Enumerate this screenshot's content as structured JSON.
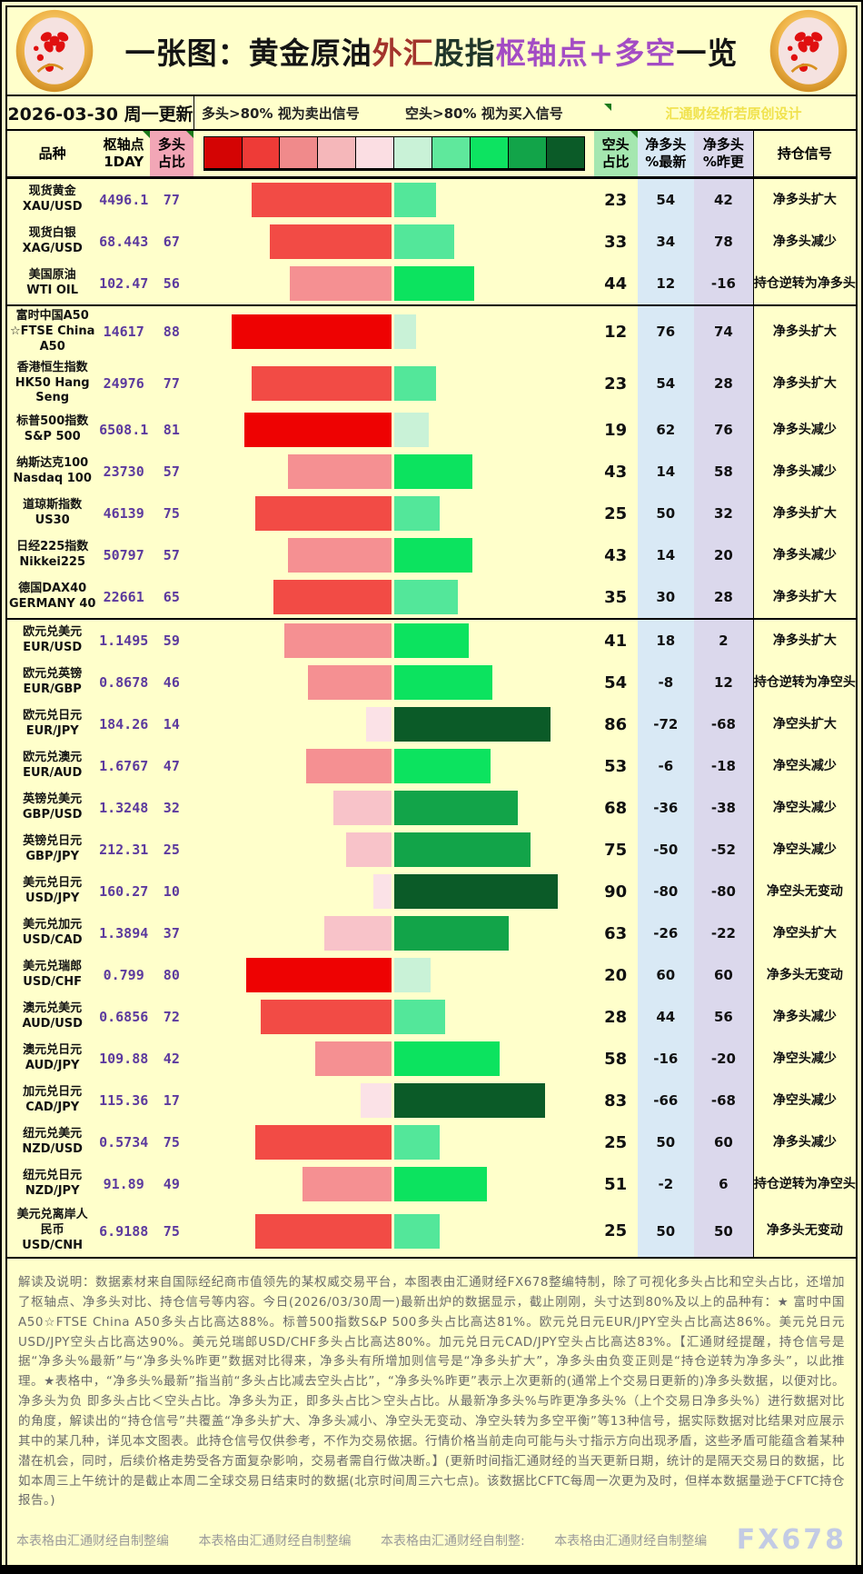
{
  "title": {
    "segments": [
      {
        "text": "一张图：黄金原油",
        "color": "#141414"
      },
      {
        "text": "外汇",
        "color": "#A3342C"
      },
      {
        "text": "股指",
        "color": "#20362A"
      },
      {
        "text": "枢轴点+多空",
        "color": "#A34CC4"
      },
      {
        "text": "一览",
        "color": "#141414"
      }
    ]
  },
  "subheader": {
    "date": "2026-03-30 周一更新",
    "hint_long": "多头>80% 视为卖出信号",
    "hint_short": "空头>80% 视为买入信号",
    "designer": "汇通财经析若原创设计"
  },
  "columns": {
    "name": "品种",
    "pivot": "枢轴点\n1DAY",
    "long": "多头\n占比",
    "short": "空头\n占比",
    "net_new": "净多头\n%最新",
    "net_old": "净多头\n%昨更",
    "signal": "持仓信号"
  },
  "legend": {
    "scale_colors": [
      "#D40404",
      "#EE3B37",
      "#F08A8B",
      "#F5B7BA",
      "#FBDEE3",
      "#C9F2D7",
      "#5FE89C",
      "#0DE361",
      "#12A449",
      "#0B5B28"
    ],
    "red_bucket_colors": [
      "#EE0202",
      "#F24B45",
      "#F59092",
      "#F8C3C9",
      "#FBE2E7"
    ],
    "green_bucket_colors": [
      "#0B5B28",
      "#12A449",
      "#0CE35F",
      "#53E79A",
      "#C9F2D7"
    ]
  },
  "table": {
    "rows": [
      {
        "group": "commodity",
        "name_lines": [
          "现货黄金",
          "XAU/USD"
        ],
        "pivot": "4496.1",
        "long": 77,
        "short": 23,
        "net_new": "54",
        "net_old": "42",
        "signal": "净多头扩大"
      },
      {
        "group": "commodity",
        "name_lines": [
          "现货白银",
          "XAG/USD"
        ],
        "pivot": "68.443",
        "long": 67,
        "short": 33,
        "net_new": "34",
        "net_old": "78",
        "signal": "净多头减少"
      },
      {
        "group": "commodity",
        "name_lines": [
          "美国原油",
          "WTI OIL"
        ],
        "pivot": "102.47",
        "long": 56,
        "short": 44,
        "net_new": "12",
        "net_old": "-16",
        "signal": "持仓逆转为净多头"
      },
      {
        "group": "index",
        "name_lines": [
          "富时中国A50",
          "☆FTSE China",
          "A50"
        ],
        "pivot": "14617",
        "long": 88,
        "short": 12,
        "net_new": "76",
        "net_old": "74",
        "signal": "净多头扩大"
      },
      {
        "group": "index",
        "name_lines": [
          "香港恒生指数",
          "HK50 Hang",
          "Seng"
        ],
        "pivot": "24976",
        "long": 77,
        "short": 23,
        "net_new": "54",
        "net_old": "28",
        "signal": "净多头扩大"
      },
      {
        "group": "index",
        "name_lines": [
          "标普500指数",
          "S&P 500"
        ],
        "pivot": "6508.1",
        "long": 81,
        "short": 19,
        "net_new": "62",
        "net_old": "76",
        "signal": "净多头减少"
      },
      {
        "group": "index",
        "name_lines": [
          "纳斯达克100",
          "Nasdaq 100"
        ],
        "pivot": "23730",
        "long": 57,
        "short": 43,
        "net_new": "14",
        "net_old": "58",
        "signal": "净多头减少"
      },
      {
        "group": "index",
        "name_lines": [
          "道琼斯指数",
          "US30"
        ],
        "pivot": "46139",
        "long": 75,
        "short": 25,
        "net_new": "50",
        "net_old": "32",
        "signal": "净多头扩大"
      },
      {
        "group": "index",
        "name_lines": [
          "日经225指数",
          "Nikkei225"
        ],
        "pivot": "50797",
        "long": 57,
        "short": 43,
        "net_new": "14",
        "net_old": "20",
        "signal": "净多头减少"
      },
      {
        "group": "index",
        "name_lines": [
          "德国DAX40",
          "GERMANY 40"
        ],
        "pivot": "22661",
        "long": 65,
        "short": 35,
        "net_new": "30",
        "net_old": "28",
        "signal": "净多头扩大"
      },
      {
        "group": "fx",
        "name_lines": [
          "欧元兑美元",
          "EUR/USD"
        ],
        "pivot": "1.1495",
        "long": 59,
        "short": 41,
        "net_new": "18",
        "net_old": "2",
        "signal": "净多头扩大"
      },
      {
        "group": "fx",
        "name_lines": [
          "欧元兑英镑",
          "EUR/GBP"
        ],
        "pivot": "0.8678",
        "long": 46,
        "short": 54,
        "net_new": "-8",
        "net_old": "12",
        "signal": "持仓逆转为净空头"
      },
      {
        "group": "fx",
        "name_lines": [
          "欧元兑日元",
          "EUR/JPY"
        ],
        "pivot": "184.26",
        "long": 14,
        "short": 86,
        "net_new": "-72",
        "net_old": "-68",
        "signal": "净空头扩大"
      },
      {
        "group": "fx",
        "name_lines": [
          "欧元兑澳元",
          "EUR/AUD"
        ],
        "pivot": "1.6767",
        "long": 47,
        "short": 53,
        "net_new": "-6",
        "net_old": "-18",
        "signal": "净空头减少"
      },
      {
        "group": "fx",
        "name_lines": [
          "英镑兑美元",
          "GBP/USD"
        ],
        "pivot": "1.3248",
        "long": 32,
        "short": 68,
        "net_new": "-36",
        "net_old": "-38",
        "signal": "净空头减少"
      },
      {
        "group": "fx",
        "name_lines": [
          "英镑兑日元",
          "GBP/JPY"
        ],
        "pivot": "212.31",
        "long": 25,
        "short": 75,
        "net_new": "-50",
        "net_old": "-52",
        "signal": "净空头减少"
      },
      {
        "group": "fx",
        "name_lines": [
          "美元兑日元",
          "USD/JPY"
        ],
        "pivot": "160.27",
        "long": 10,
        "short": 90,
        "net_new": "-80",
        "net_old": "-80",
        "signal": "净空头无变动"
      },
      {
        "group": "fx",
        "name_lines": [
          "美元兑加元",
          "USD/CAD"
        ],
        "pivot": "1.3894",
        "long": 37,
        "short": 63,
        "net_new": "-26",
        "net_old": "-22",
        "signal": "净空头扩大"
      },
      {
        "group": "fx",
        "name_lines": [
          "美元兑瑞郎",
          "USD/CHF"
        ],
        "pivot": "0.799",
        "long": 80,
        "short": 20,
        "net_new": "60",
        "net_old": "60",
        "signal": "净多头无变动"
      },
      {
        "group": "fx",
        "name_lines": [
          "澳元兑美元",
          "AUD/USD"
        ],
        "pivot": "0.6856",
        "long": 72,
        "short": 28,
        "net_new": "44",
        "net_old": "56",
        "signal": "净多头减少"
      },
      {
        "group": "fx",
        "name_lines": [
          "澳元兑日元",
          "AUD/JPY"
        ],
        "pivot": "109.88",
        "long": 42,
        "short": 58,
        "net_new": "-16",
        "net_old": "-20",
        "signal": "净空头减少"
      },
      {
        "group": "fx",
        "name_lines": [
          "加元兑日元",
          "CAD/JPY"
        ],
        "pivot": "115.36",
        "long": 17,
        "short": 83,
        "net_new": "-66",
        "net_old": "-68",
        "signal": "净空头减少"
      },
      {
        "group": "fx",
        "name_lines": [
          "纽元兑美元",
          "NZD/USD"
        ],
        "pivot": "0.5734",
        "long": 75,
        "short": 25,
        "net_new": "50",
        "net_old": "60",
        "signal": "净多头减少"
      },
      {
        "group": "fx",
        "name_lines": [
          "纽元兑日元",
          "NZD/JPY"
        ],
        "pivot": "91.89",
        "long": 49,
        "short": 51,
        "net_new": "-2",
        "net_old": "6",
        "signal": "持仓逆转为净空头"
      },
      {
        "group": "fx",
        "name_lines": [
          "美元兑离岸人",
          "民币",
          "USD/CNH"
        ],
        "pivot": "6.9188",
        "long": 75,
        "short": 25,
        "net_new": "50",
        "net_old": "50",
        "signal": "净多头无变动"
      }
    ]
  },
  "notes": {
    "text": "解读及说明：数据素材来自国际经纪商市值领先的某权威交易平台，本图表由汇通财经FX678整编特制，除了可视化多头占比和空头占比，还增加了枢轴点、净多头对比、持仓信号等内容。今日(2026/03/30周一)最新出炉的数据显示，截止刚刚，头寸达到80%及以上的品种有：★ 富时中国A50☆FTSE China A50多头占比高达88%。标普500指数S&P 500多头占比高达81%。欧元兑日元EUR/JPY空头占比高达86%。美元兑日元USD/JPY空头占比高达90%。美元兑瑞郎USD/CHF多头占比高达80%。加元兑日元CAD/JPY空头占比高达83%。【汇通财经提醒，持仓信号是据“净多头%最新”与“净多头%昨更”数据对比得来，净多头有所增加则信号是“净多头扩大”，净多头由负变正则是“持仓逆转为净多头”，以此推理。★表格中，“净多头%最新”指当前“多头占比减去空头占比”，“净多头%昨更”表示上次更新的(通常上个交易日更新的)净多头数据，以便对比。净多头为负 即多头占比＜空头占比。净多头为正，即多头占比＞空头占比。从最新净多头%与昨更净多头%（上个交易日净多头%）进行数据对比的角度，解读出的“持仓信号”共覆盖“净多头扩大、净多头减小、净空头无变动、净空头转为多空平衡”等13种信号，据实际数据对比结果对应展示其中的某几种，详见本文图表。此持仓信号仅供参考，不作为交易依据。行情价格当前走向可能与头寸指示方向出现矛盾，这些矛盾可能蕴含着某种潜在机会，同时，后续价格走势受各方面复杂影响，交易者需自行做决断。】(更新时间指汇通财经的当天更新日期，统计的是隔天交易日的数据，比如本周三上午统计的是截止本周二全球交易日结束时的数据(北京时间周三六七点)。该数据比CFTC每周一次更为及时，但样本数据量逊于CFTC持仓报告。)"
  },
  "footer": {
    "credits": [
      "本表格由汇通财经自制整编",
      "本表格由汇通财经自制整编",
      "本表格由汇通财经自制整:",
      "本表格由汇通财经自制整编"
    ],
    "brand": "FX678"
  },
  "chart_data": {
    "type": "bar",
    "subtype": "diverging-stacked-horizontal",
    "title": "一张图：黄金原油外汇股指枢轴点+多空一览",
    "date": "2026-03-30 周一更新",
    "legend_note_long": "多头>80% 视为卖出信号",
    "legend_note_short": "空头>80% 视为买入信号",
    "categories": [
      "XAU/USD",
      "XAG/USD",
      "WTI OIL",
      "FTSE China A50",
      "HK50 Hang Seng",
      "S&P 500",
      "Nasdaq 100",
      "US30",
      "Nikkei225",
      "GERMANY 40",
      "EUR/USD",
      "EUR/GBP",
      "EUR/JPY",
      "EUR/AUD",
      "GBP/USD",
      "GBP/JPY",
      "USD/JPY",
      "USD/CAD",
      "USD/CHF",
      "AUD/USD",
      "AUD/JPY",
      "CAD/JPY",
      "NZD/USD",
      "NZD/JPY",
      "USD/CNH"
    ],
    "series": [
      {
        "name": "多头占比",
        "values": [
          77,
          67,
          56,
          88,
          77,
          81,
          57,
          75,
          57,
          65,
          59,
          46,
          14,
          47,
          32,
          25,
          10,
          37,
          80,
          72,
          42,
          17,
          75,
          49,
          75
        ]
      },
      {
        "name": "空头占比",
        "values": [
          23,
          33,
          44,
          12,
          23,
          19,
          43,
          25,
          43,
          35,
          41,
          54,
          86,
          53,
          68,
          75,
          90,
          63,
          20,
          28,
          58,
          83,
          25,
          51,
          25
        ]
      },
      {
        "name": "净多头%最新",
        "values": [
          54,
          34,
          12,
          76,
          54,
          62,
          14,
          50,
          14,
          30,
          18,
          -8,
          -72,
          -6,
          -36,
          -50,
          -80,
          -26,
          60,
          44,
          -16,
          -66,
          50,
          -2,
          50
        ]
      },
      {
        "name": "净多头%昨更",
        "values": [
          42,
          78,
          -16,
          74,
          28,
          76,
          58,
          32,
          20,
          28,
          2,
          12,
          -68,
          -18,
          -38,
          -52,
          -80,
          -22,
          60,
          56,
          -20,
          -68,
          60,
          6,
          50
        ]
      }
    ],
    "pivot_points_1day": [
      4496.1,
      68.443,
      102.47,
      14617,
      24976,
      6508.1,
      23730,
      46139,
      50797,
      22661,
      1.1495,
      0.8678,
      184.26,
      1.6767,
      1.3248,
      212.31,
      160.27,
      1.3894,
      0.799,
      0.6856,
      109.88,
      115.36,
      0.5734,
      91.89,
      6.9188
    ],
    "signals": [
      "净多头扩大",
      "净多头减少",
      "持仓逆转为净多头",
      "净多头扩大",
      "净多头扩大",
      "净多头减少",
      "净多头减少",
      "净多头扩大",
      "净多头减少",
      "净多头扩大",
      "净多头扩大",
      "持仓逆转为净空头",
      "净空头扩大",
      "净空头减少",
      "净空头减少",
      "净空头减少",
      "净空头无变动",
      "净空头扩大",
      "净多头无变动",
      "净多头减少",
      "净空头减少",
      "净空头减少",
      "净多头减少",
      "持仓逆转为净空头",
      "净多头无变动"
    ],
    "xlim": [
      -100,
      100
    ],
    "axis_center": 0,
    "grid": false,
    "legend_position": "top",
    "color_scale_10": [
      "#D40404",
      "#EE3B37",
      "#F08A8B",
      "#F5B7BA",
      "#FBDEE3",
      "#C9F2D7",
      "#5FE89C",
      "#0DE361",
      "#12A449",
      "#0B5B28"
    ]
  }
}
